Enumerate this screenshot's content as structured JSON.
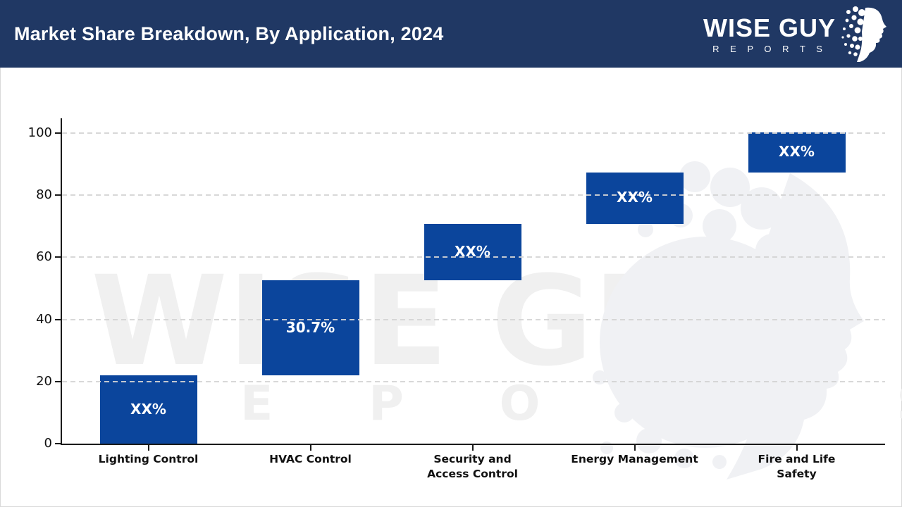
{
  "header": {
    "title": "Market Share Breakdown, By Application, 2024",
    "logo_line1": "WISE GUY",
    "logo_line2": "R E P O R T S"
  },
  "watermark": {
    "line1": "WISE GUY",
    "line2": "R E P O R T S"
  },
  "chart_data": {
    "type": "bar",
    "subtype": "waterfall",
    "title": "Market Share Breakdown, By Application, 2024",
    "categories": [
      "Lighting Control",
      "HVAC Control",
      "Security and Access Control",
      "Energy Management",
      "Fire and Life Safety"
    ],
    "category_label_lines": [
      [
        "Lighting Control"
      ],
      [
        "HVAC Control"
      ],
      [
        "Security and",
        "Access Control"
      ],
      [
        "Energy Management"
      ],
      [
        "Fire and Life",
        "Safety"
      ]
    ],
    "segments": [
      {
        "category": "Lighting Control",
        "start": 0,
        "end": 21.9,
        "label": "XX%"
      },
      {
        "category": "HVAC Control",
        "start": 21.9,
        "end": 52.6,
        "label": "30.7%"
      },
      {
        "category": "Security and Access Control",
        "start": 52.6,
        "end": 70.8,
        "label": "XX%"
      },
      {
        "category": "Energy Management",
        "start": 70.8,
        "end": 87.4,
        "label": "XX%"
      },
      {
        "category": "Fire and Life Safety",
        "start": 87.4,
        "end": 100.2,
        "label": "XX%"
      }
    ],
    "yticks": [
      0,
      20,
      40,
      60,
      80,
      100
    ],
    "ylim": [
      0,
      105
    ],
    "xlabel": "",
    "ylabel": "",
    "grid": true,
    "grid_style": "dashed",
    "legend": false,
    "bar_color": "#0b459c",
    "bar_label_color": "#ffffff",
    "header_color": "#203864",
    "watermark_color": "#f0f0f0"
  }
}
